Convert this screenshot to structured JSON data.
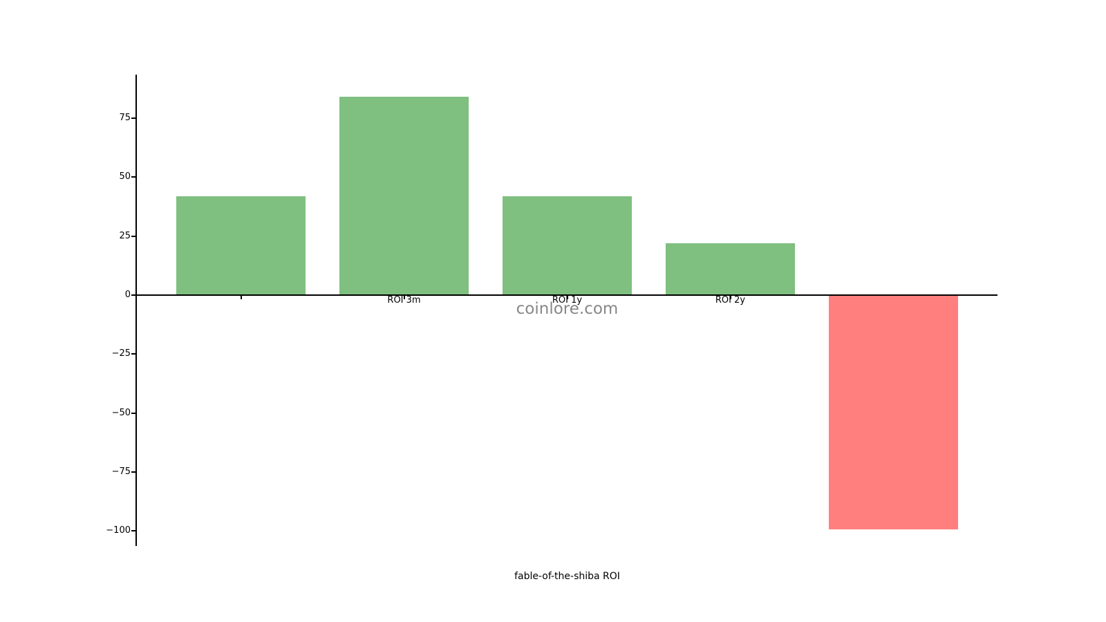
{
  "chart_data": {
    "type": "bar",
    "title": "fable-of-the-shiba ROI",
    "watermark": "coinlore.com",
    "categories": [
      "",
      "ROI 3m",
      "ROI 1y",
      "ROI 2y",
      ""
    ],
    "values": [
      42,
      84,
      42,
      22,
      -99
    ],
    "xtick_marks": [
      true,
      true,
      true,
      true,
      false
    ],
    "yticks": [
      {
        "value": 75,
        "label": "75"
      },
      {
        "value": 50,
        "label": "50"
      },
      {
        "value": 25,
        "label": "25"
      },
      {
        "value": 0,
        "label": "0"
      },
      {
        "value": -25,
        "label": "−25"
      },
      {
        "value": -50,
        "label": "−50"
      },
      {
        "value": -75,
        "label": "−75"
      },
      {
        "value": -100,
        "label": "−100"
      }
    ],
    "ylim": [
      -106,
      93.5
    ],
    "grid": false,
    "legend": null,
    "colors": {
      "positive_bar": "#7fbf7f",
      "negative_bar": "#ff7f7f",
      "axis": "#000000",
      "tick_label": "#000000",
      "watermark": "#878787",
      "title": "#000000"
    }
  }
}
